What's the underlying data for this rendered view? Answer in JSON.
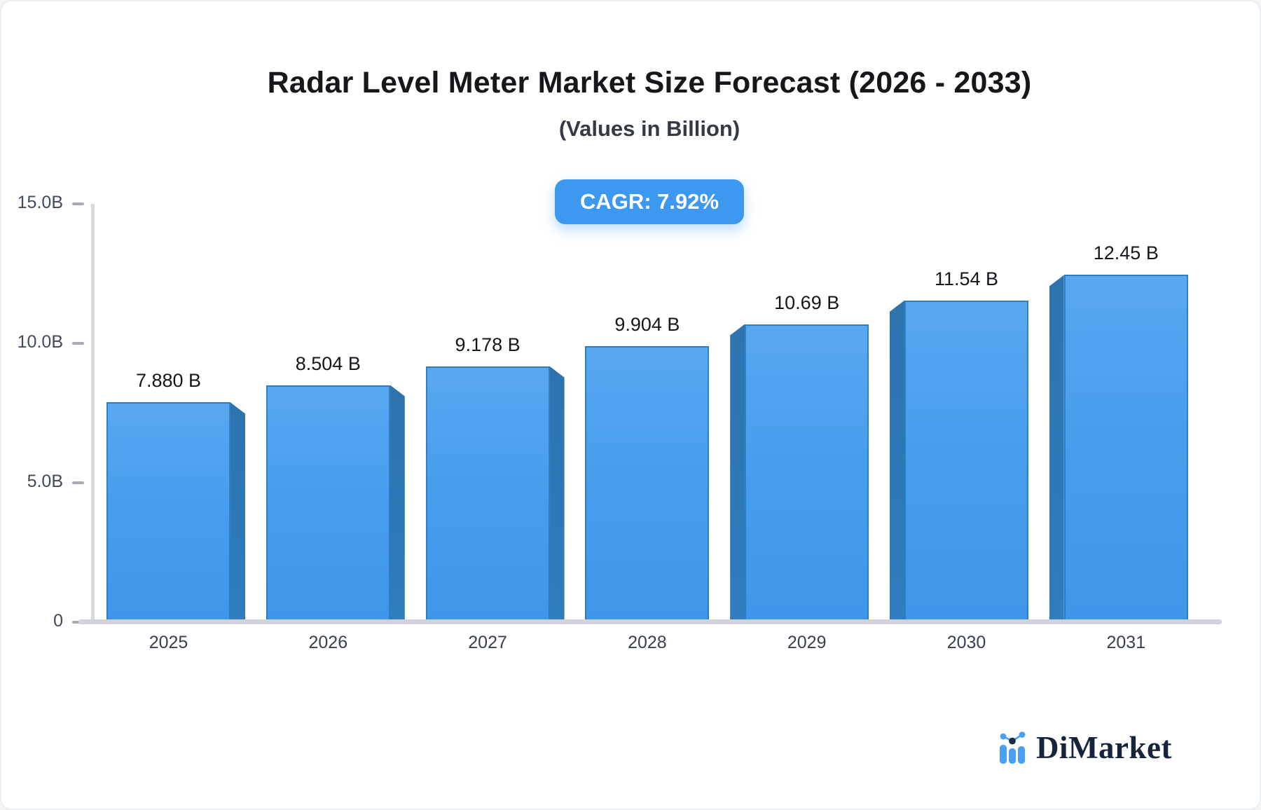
{
  "chart_data": {
    "type": "bar",
    "title": "Radar Level Meter Market Size Forecast (2026 - 2033)",
    "subtitle": "(Values in Billion)",
    "cagr_label": "CAGR: 7.92%",
    "categories": [
      "2025",
      "2026",
      "2027",
      "2028",
      "2029",
      "2030",
      "2031"
    ],
    "values": [
      7.88,
      8.504,
      9.178,
      9.904,
      10.69,
      11.54,
      12.45
    ],
    "value_labels": [
      "7.880 B",
      "8.504 B",
      "9.178 B",
      "9.904 B",
      "10.69 B",
      "11.54 B",
      "12.45 B"
    ],
    "ylim": [
      0,
      15
    ],
    "yticks": [
      {
        "value": 15,
        "label": "15.0B"
      },
      {
        "value": 10,
        "label": "10.0B"
      },
      {
        "value": 5,
        "label": "5.0B"
      },
      {
        "value": 0,
        "label": "0"
      }
    ],
    "xlabel": "",
    "ylabel": "",
    "grid": false,
    "legend": false,
    "colors": {
      "bar_front_top": "#59a8f1",
      "bar_front_bottom": "#3e96ea",
      "bar_border": "#287abc",
      "bar_side": "#2f79b9",
      "badge_bg": "#3d99ef",
      "axis_line": "#d6d9de",
      "tick_dash": "#a6adb7"
    }
  },
  "branding": {
    "logo_text": "DiMarket",
    "logo_icon": "bar-chart-icon",
    "logo_blue": "#4aa0f4",
    "logo_dark": "#1d2b45"
  }
}
